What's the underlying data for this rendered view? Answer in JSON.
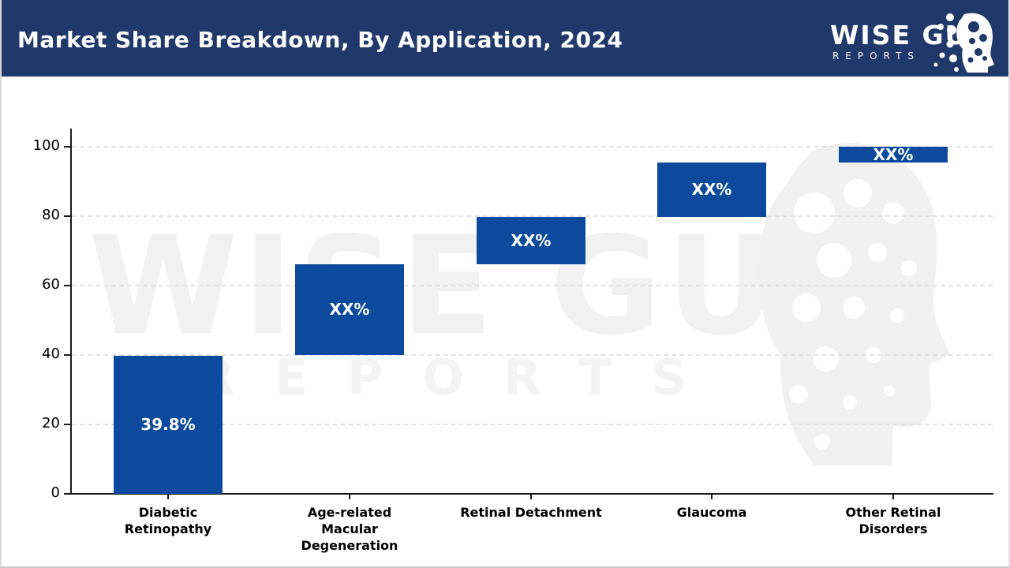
{
  "header": {
    "title": "Market Share Breakdown, By Application, 2024",
    "logo": {
      "line1": "WISE GUY",
      "line2": "REPORTS"
    }
  },
  "watermark": {
    "line1": "WISE GUY",
    "line2": "REPORTS"
  },
  "chart_data": {
    "type": "bar",
    "subtype": "waterfall-floating-bars",
    "title": "Market Share Breakdown, By Application, 2024",
    "categories": [
      "Diabetic\nRetinopathy",
      "Age-related\nMacular\nDegeneration",
      "Retinal Detachment",
      "Glaucoma",
      "Other Retinal\nDisorders"
    ],
    "segments": [
      {
        "start": 0,
        "end": 39.8,
        "label": "39.8%"
      },
      {
        "start": 40,
        "end": 66.2,
        "label": "XX%"
      },
      {
        "start": 66.2,
        "end": 79.8,
        "label": "XX%"
      },
      {
        "start": 79.8,
        "end": 95.5,
        "label": "XX%"
      },
      {
        "start": 95.5,
        "end": 100,
        "label": "XX%"
      }
    ],
    "xlabel": "",
    "ylabel": "",
    "ylim": [
      0,
      100
    ],
    "yticks": [
      0,
      20,
      40,
      60,
      80,
      100
    ],
    "grid": "horizontal-dashed",
    "legend": "none",
    "bar_color": "#0c4a9e",
    "bar_label_color": "#ffffff"
  },
  "colors": {
    "header_bg": "#21386b",
    "bar": "#0c4a9e",
    "axis": "#1a1a1a",
    "grid": "#e2e2e2",
    "watermark": "#f1f1f1"
  }
}
